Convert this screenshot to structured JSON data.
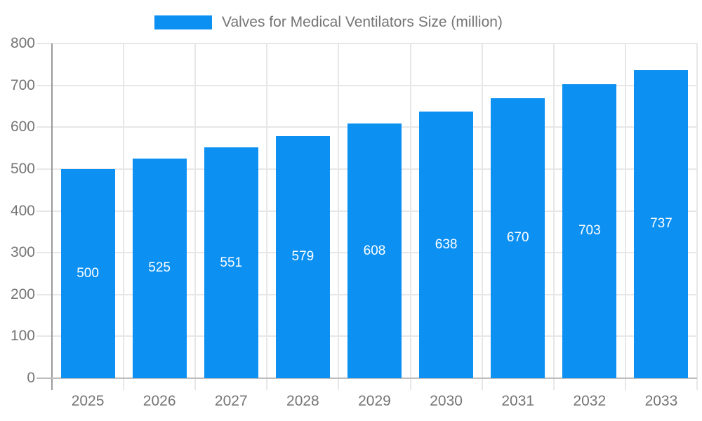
{
  "chart_data": {
    "type": "bar",
    "series_name": "Valves for Medical Ventilators Size (million)",
    "categories": [
      "2025",
      "2026",
      "2027",
      "2028",
      "2029",
      "2030",
      "2031",
      "2032",
      "2033"
    ],
    "values": [
      500,
      525,
      551,
      579,
      608,
      638,
      670,
      703,
      737
    ],
    "title": "",
    "xlabel": "",
    "ylabel": "",
    "ylim": [
      0,
      800
    ],
    "yticks": [
      0,
      100,
      200,
      300,
      400,
      500,
      600,
      700,
      800
    ],
    "grid": true,
    "legend_position": "top-center",
    "value_label_position": "inside-center",
    "colors": {
      "bar": "#0c90f2",
      "bar_label": "#ffffff",
      "axis_text": "#757575",
      "grid_line": "#e7e7e7",
      "x_axis_line": "#bdbdbd",
      "y_axis_line": "#9a9a9a"
    }
  }
}
